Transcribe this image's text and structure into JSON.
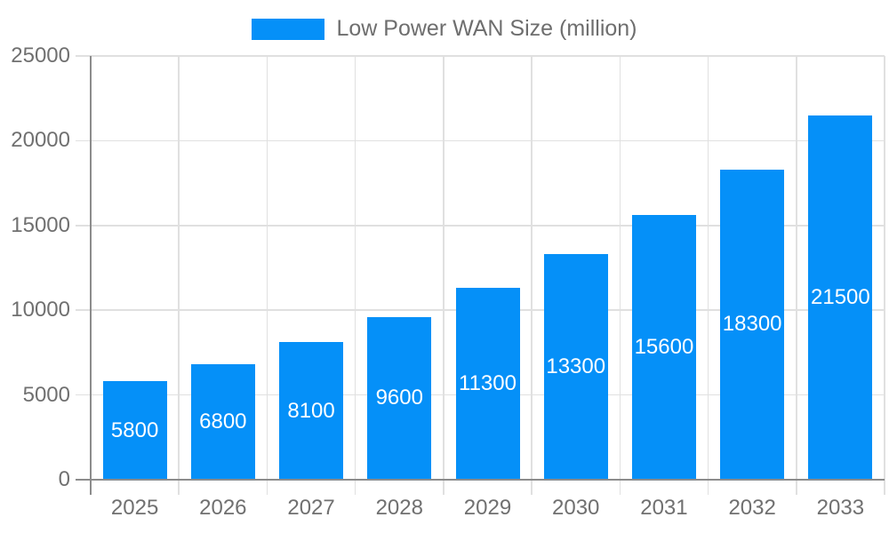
{
  "chart_data": {
    "type": "bar",
    "title": "",
    "legend": {
      "position": "top-center",
      "label": "Low Power WAN Size (million)"
    },
    "categories": [
      "2025",
      "2026",
      "2027",
      "2028",
      "2029",
      "2030",
      "2031",
      "2032",
      "2033"
    ],
    "series": [
      {
        "name": "Low Power WAN Size (million)",
        "values": [
          5800,
          6800,
          8100,
          9600,
          11300,
          13300,
          15600,
          18300,
          21500
        ]
      }
    ],
    "bar_labels_visible": true,
    "bar_label_position": "inside-center",
    "xlabel": "",
    "ylabel": "",
    "ylim": [
      0,
      25000
    ],
    "yticks": [
      0,
      5000,
      10000,
      15000,
      20000,
      25000
    ],
    "grid": "horizontal-and-vertical"
  },
  "colors": {
    "bar": "#0590F8",
    "grid": "#e0e0e0",
    "axis": "#8c8c8c",
    "tick_text": "#707070",
    "legend_text": "#6e6e6e",
    "value_text": "#ffffff",
    "background": "#ffffff"
  }
}
